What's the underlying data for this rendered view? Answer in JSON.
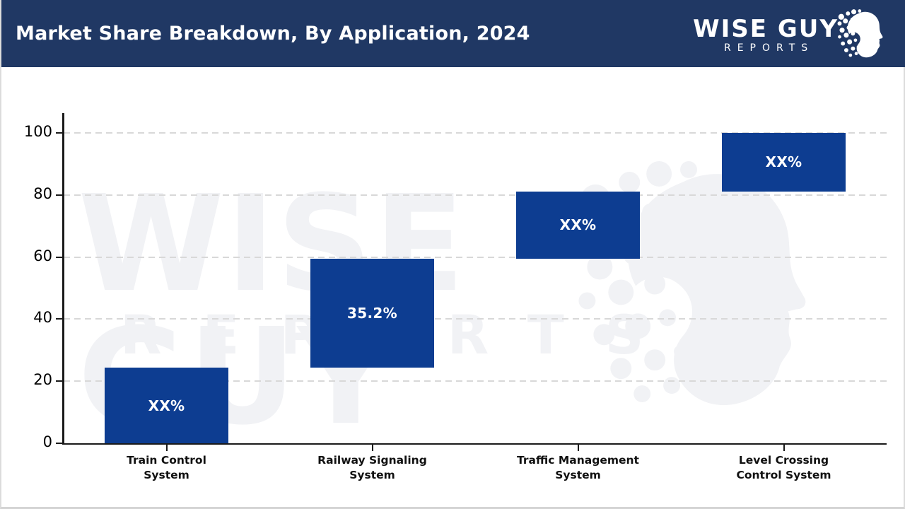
{
  "header": {
    "title": "Market Share Breakdown, By Application, 2024",
    "logo": {
      "wordmark": "WISE GUY",
      "subtitle": "REPORTS"
    }
  },
  "watermark": {
    "wordmark": "WISE GUY",
    "subtitle": "REPORTS"
  },
  "colors": {
    "canvas_bg": "#ffffff",
    "header_bg": "#203864",
    "title_text": "#ffffff",
    "bar": "#0d3d91",
    "bar_label_text": "#ffffff",
    "watermark": "#f1f2f5",
    "gridline": "#d8d8d8",
    "axis": "#1a1a1a",
    "tick_text": "#000000",
    "category_text": "#111111"
  },
  "chart_data": {
    "type": "bar",
    "subtype": "waterfall",
    "title": "Market Share Breakdown, By Application, 2024",
    "categories": [
      "Train Control System",
      "Railway Signaling System",
      "Traffic Management System",
      "Level Crossing Control System"
    ],
    "category_label_lines": [
      [
        "Train Control",
        "System"
      ],
      [
        "Railway Signaling",
        "System"
      ],
      [
        "Traffic Management",
        "System"
      ],
      [
        "Level Crossing",
        "Control System"
      ]
    ],
    "segments": [
      {
        "category": "Train Control System",
        "start": 0,
        "end": 24.3,
        "label": "XX%"
      },
      {
        "category": "Railway Signaling System",
        "start": 24.3,
        "end": 59.5,
        "label": "35.2%"
      },
      {
        "category": "Traffic Management System",
        "start": 59.5,
        "end": 81.2,
        "label": "XX%"
      },
      {
        "category": "Level Crossing Control System",
        "start": 81.2,
        "end": 100,
        "label": "XX%"
      }
    ],
    "xlabel": "",
    "ylabel": "",
    "ylim": [
      0,
      100
    ],
    "yticks": [
      0,
      20,
      40,
      60,
      80,
      100
    ],
    "grid": true,
    "legend": false
  }
}
